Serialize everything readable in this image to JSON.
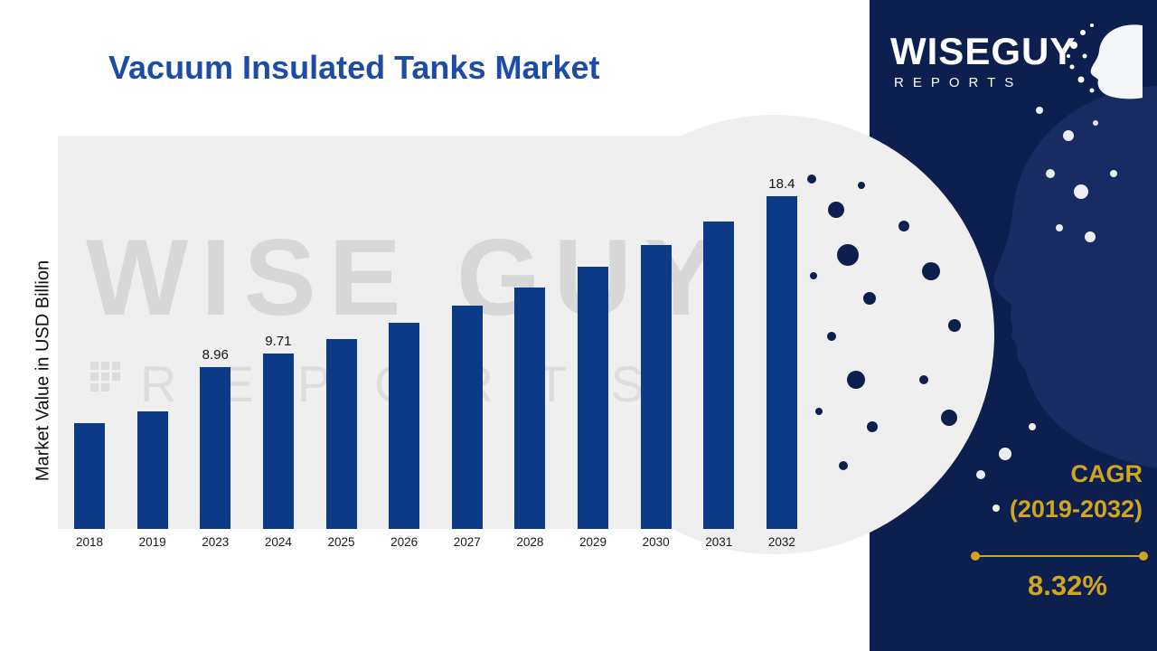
{
  "title": "Vacuum Insulated Tanks Market",
  "brand": {
    "name": "WISEGUY",
    "sub": "REPORTS"
  },
  "watermark": {
    "line1": "WISE GUY",
    "line2": "REPORTS"
  },
  "cagr": {
    "label": "CAGR",
    "range": "(2019-2032)",
    "value": "8.32%"
  },
  "chart_data": {
    "type": "bar",
    "title": "Vacuum Insulated Tanks Market",
    "xlabel": "",
    "ylabel": "Market Value in USD Billion",
    "categories": [
      "2018",
      "2019",
      "2023",
      "2024",
      "2025",
      "2026",
      "2027",
      "2028",
      "2029",
      "2030",
      "2031",
      "2032"
    ],
    "values": [
      5.85,
      6.51,
      8.96,
      9.71,
      10.52,
      11.39,
      12.34,
      13.37,
      14.48,
      15.68,
      16.99,
      18.4
    ],
    "data_labels": {
      "2023": "8.96",
      "2024": "9.71",
      "2032": "18.4"
    },
    "unit": "USD Billion",
    "ylim": [
      0,
      20
    ],
    "grid": false,
    "legend": false,
    "bar_color": "#0d3a87"
  },
  "colors": {
    "panel_navy": "#0d1f4e",
    "bar_blue": "#0d3a87",
    "title_blue": "#1d4ca6",
    "accent_gold": "#d2a51f",
    "chart_bg": "#efefef"
  }
}
